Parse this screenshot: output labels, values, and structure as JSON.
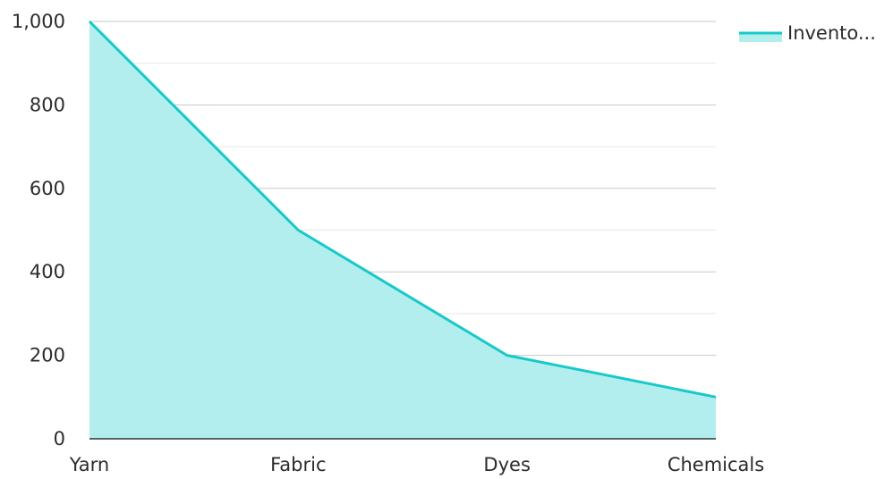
{
  "chart_data": {
    "type": "area",
    "categories": [
      "Yarn",
      "Fabric",
      "Dyes",
      "Chemicals"
    ],
    "series": [
      {
        "name": "Invento...",
        "values": [
          1000,
          500,
          200,
          100
        ]
      }
    ],
    "ylim": [
      0,
      1000
    ],
    "y_ticks": [
      "0",
      "200",
      "400",
      "600",
      "800",
      "1,000"
    ],
    "grid": true,
    "legend_position": "top-right",
    "colors": {
      "line": "#17c9c9",
      "fill": "#b2eeee",
      "grid_major": "#c8c8c8",
      "grid_minor": "#e6e6e6",
      "axis": "#333333"
    }
  }
}
